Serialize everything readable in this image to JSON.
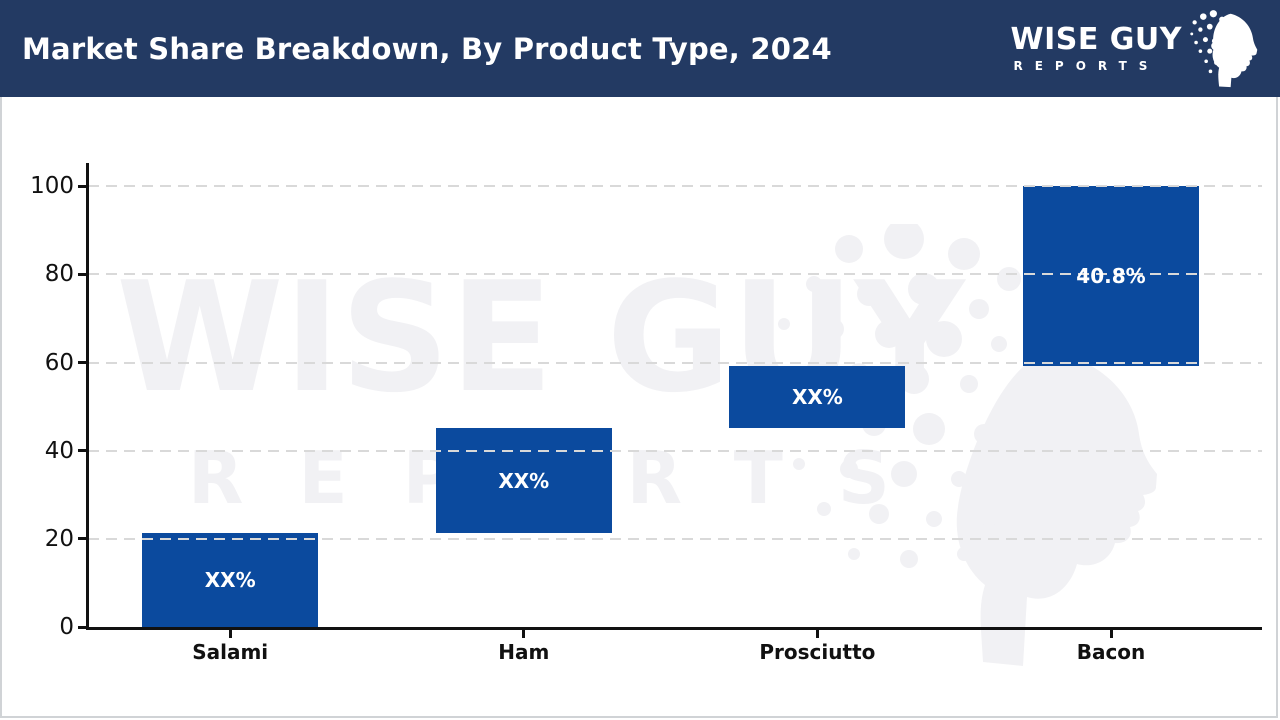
{
  "header": {
    "title": "Market Share Breakdown, By Product Type, 2024",
    "logo": {
      "brand": "WISE GUY",
      "tagline": "REPORTS"
    }
  },
  "watermark": {
    "brand": "WISE GUY",
    "tagline": "REPORTS"
  },
  "chart_data": {
    "type": "bar",
    "subtype": "waterfall-floating-bars",
    "title": "Market Share Breakdown, By Product Type, 2024",
    "categories": [
      "Salami",
      "Ham",
      "Prosciutto",
      "Bacon"
    ],
    "bars": [
      {
        "category": "Salami",
        "start": 0,
        "end": 21.3,
        "label": "XX%"
      },
      {
        "category": "Ham",
        "start": 21.3,
        "end": 45.1,
        "label": "XX%"
      },
      {
        "category": "Prosciutto",
        "start": 45.1,
        "end": 59.2,
        "label": "XX%"
      },
      {
        "category": "Bacon",
        "start": 59.2,
        "end": 100,
        "label": "40.8%"
      }
    ],
    "yticks": [
      0,
      20,
      40,
      60,
      80,
      100
    ],
    "ylim": [
      0,
      105
    ],
    "xlabel": "",
    "ylabel": "",
    "legend_position": "none",
    "grid": "horizontal-dashed",
    "colors": {
      "bar": "#0b4a9e",
      "grid": "#d9d9d9",
      "axis": "#111111",
      "bar_label": "#ffffff"
    }
  },
  "theme": {
    "header_bg": "#233a63",
    "header_text": "#ffffff",
    "watermark_color": "#f1f1f4",
    "page_border": "#d0d3d6"
  }
}
